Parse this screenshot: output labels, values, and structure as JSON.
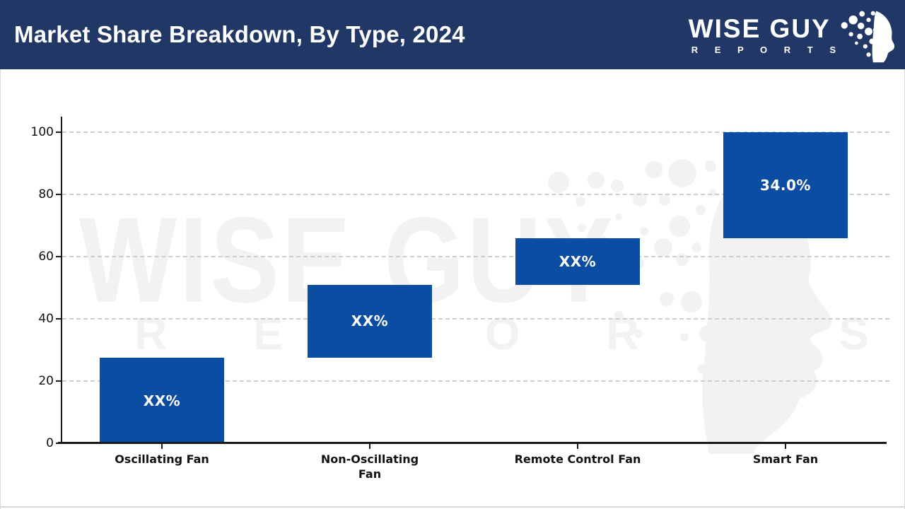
{
  "header": {
    "title": "Market Share Breakdown, By Type, 2024",
    "logo": {
      "line1": "WISE GUY",
      "line2": "R E P O R T S",
      "icon": "face-profile-dots-icon"
    }
  },
  "watermark": {
    "line1": "WISE GUY",
    "line2": "R E P O R T S",
    "icon": "face-profile-dots-watermark"
  },
  "colors": {
    "header_bg": "#213866",
    "bar": "#0C4DA4",
    "bar_label_text": "#FFFFFF",
    "watermark": "#F1F2F4",
    "grid": "#CCCCCC",
    "axis": "#1A1A1A"
  },
  "chart_data": {
    "type": "bar",
    "subtype": "waterfall",
    "title": "Market Share Breakdown, By Type, 2024",
    "categories": [
      "Oscillating Fan",
      "Non-Oscillating\nFan",
      "Remote Control Fan",
      "Smart Fan"
    ],
    "segments": [
      {
        "category": "Oscillating Fan",
        "start": 0,
        "end": 27.5,
        "value": 27.5,
        "label": "XX%"
      },
      {
        "category": "Non-Oscillating Fan",
        "start": 27.5,
        "end": 51,
        "value": 23.5,
        "label": "XX%"
      },
      {
        "category": "Remote Control Fan",
        "start": 51,
        "end": 66,
        "value": 15,
        "label": "XX%"
      },
      {
        "category": "Smart Fan",
        "start": 66,
        "end": 100,
        "value": 34,
        "label": "34.0%"
      }
    ],
    "ylim": [
      0,
      100
    ],
    "yticks": [
      0,
      20,
      40,
      60,
      80,
      100
    ],
    "xlabel": "",
    "ylabel": "",
    "grid": "horizontal-dashed",
    "legend": "none",
    "bar_color": "#0C4DA4"
  }
}
